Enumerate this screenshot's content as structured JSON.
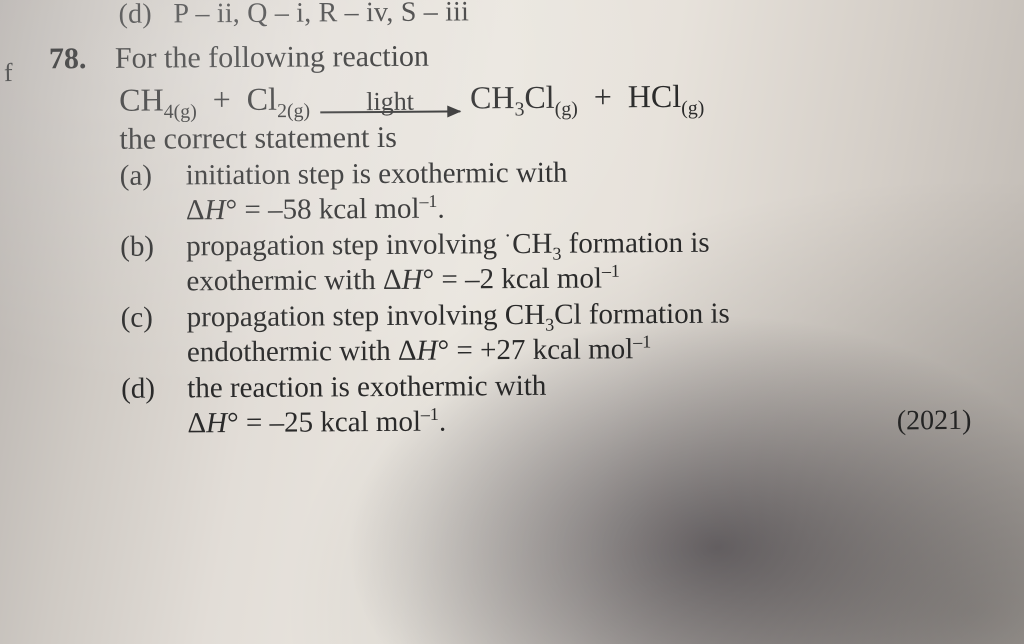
{
  "edge_letter": "f",
  "previous_option": {
    "label": "(d)",
    "text": "P – ii, Q – i, R – iv, S – iii"
  },
  "question": {
    "number": "78.",
    "stem": "For the following reaction",
    "followup": "the correct statement is",
    "year": "(2021)"
  },
  "reaction": {
    "lhs_a": "CH",
    "lhs_a_sub": "4(g)",
    "plus1": "+",
    "lhs_b": "Cl",
    "lhs_b_sub": "2(g)",
    "arrow_label": "light",
    "rhs_a": "CH",
    "rhs_a_sub": "3",
    "rhs_a2": "Cl",
    "rhs_a2_sub": "(g)",
    "plus2": "+",
    "rhs_b": "HCl",
    "rhs_b_sub": "(g)"
  },
  "options": {
    "a": {
      "label": "(a)",
      "line1": "initiation step is exothermic with",
      "line2_prefix": "Δ",
      "line2_var": "H",
      "line2_sup": "°",
      "line2_rest": " = –58 kcal mol",
      "line2_unit_sup": "–1",
      "line2_end": "."
    },
    "b": {
      "label": "(b)",
      "line1_a": "propagation step involving ",
      "radical_dot": "·",
      "radical": "CH",
      "radical_sub": "3",
      "line1_b": " formation is",
      "line2_a": "exothermic with Δ",
      "line2_var": "H",
      "line2_sup": "°",
      "line2_b": " = –2 kcal mol",
      "line2_unit_sup": "–1"
    },
    "c": {
      "label": "(c)",
      "line1_a": "propagation step involving CH",
      "ch3_sub": "3",
      "line1_b": "Cl formation is",
      "line2_a": "endothermic with Δ",
      "line2_var": "H",
      "line2_sup": "°",
      "line2_b": " = +27 kcal mol",
      "line2_unit_sup": "–1"
    },
    "d": {
      "label": "(d)",
      "line1": "the reaction is exothermic with",
      "line2_a": "Δ",
      "line2_var": "H",
      "line2_sup": "°",
      "line2_b": " = –25 kcal mol",
      "line2_unit_sup": "–1",
      "line2_end": "."
    }
  }
}
